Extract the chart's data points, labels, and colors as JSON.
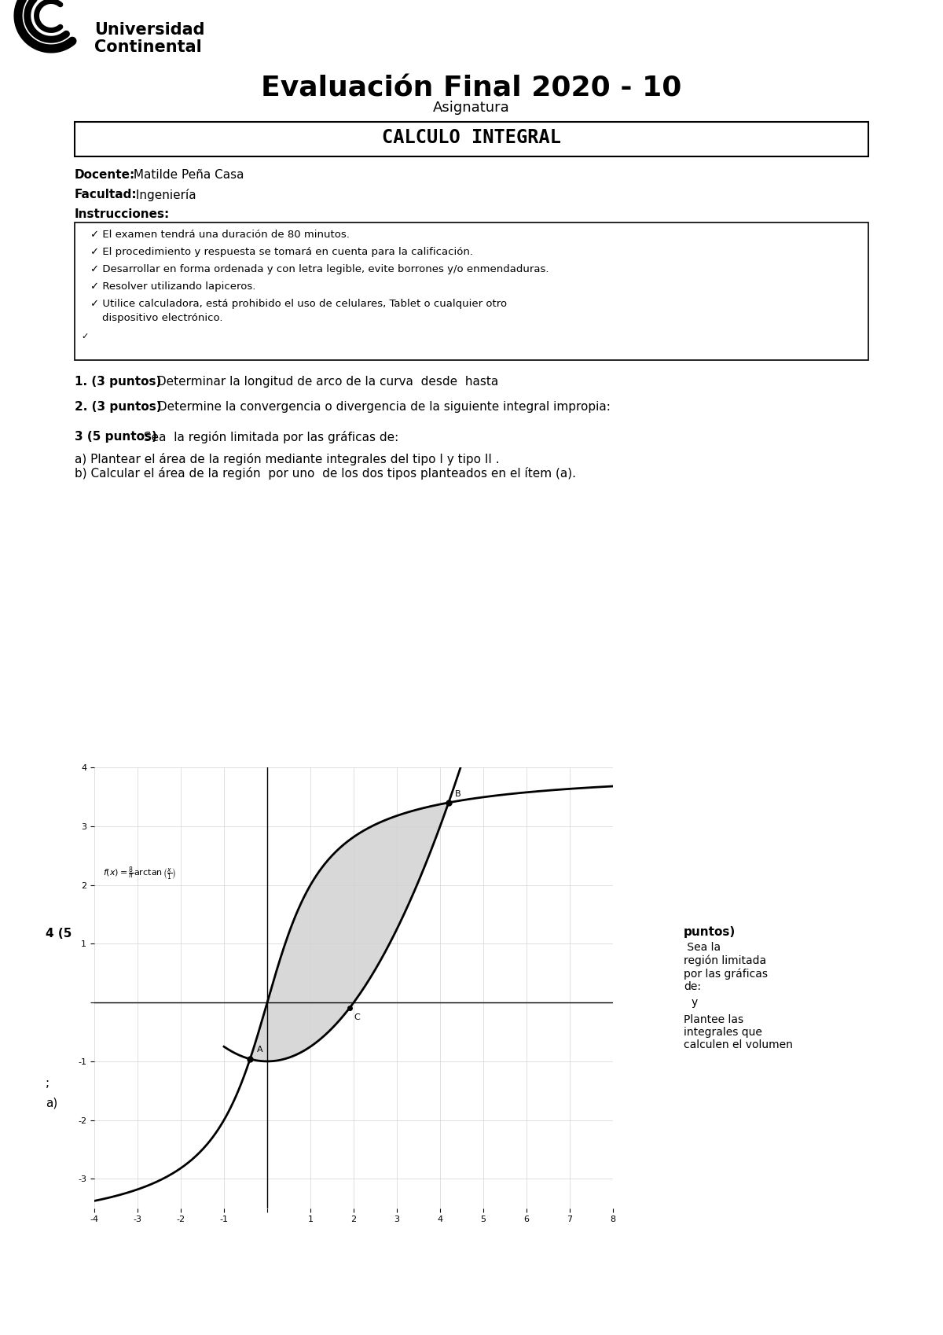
{
  "title_main": "Evaluación Final 2020 - 10",
  "subtitle_main": "Asignatura",
  "subject_box": "CALCULO INTEGRAL",
  "docente_label": "Docente:",
  "docente_value": " Matilde Peña Casa",
  "facultad_label": "Facultad:",
  "facultad_value": " Ingeniería",
  "instrucciones_label": "Instrucciones:",
  "instructions": [
    "El examen tendrá una duración de 80 minutos.",
    "El procedimiento y respuesta se tomará en cuenta para la calificación.",
    "Desarrollar en forma ordenada y con letra legible, evite borrones y/o enmendaduras.",
    "Resolver utilizando lapiceros.",
    "Utilice calculadora, está prohibido el uso de celulares, Tablet o cualquier otro\n    dispositivo electrónico."
  ],
  "q1_bold": "1. (3 puntos)",
  "q1_text": " Determinar la longitud de arco de la curva  desde  hasta",
  "q2_bold": "2. (3 puntos)",
  "q2_text": " Determine la convergencia o divergencia de la siguiente integral impropia:",
  "q3_bold": "3 (5 puntos)",
  "q3_text": " Sea  la región limitada por las gráficas de:",
  "q3a": "a) Plantear el área de la región mediante integrales del tipo I y tipo II .",
  "q3b": "b) Calcular el área de la región  por uno  de los dos tipos planteados en el ítem (a).",
  "q4_bold": "4 (5",
  "q4_side_bold": "puntos)",
  "q4_side_text": " Sea la\nregión limitada\npor las gráficas\nde:",
  "q4_side_y": "y",
  "q4_side_plantee": "Plantee las\nintegrales que\ncalculen el volumen",
  "q4_semi": ";",
  "q4_a": "a)",
  "background_color": "#ffffff",
  "text_color": "#000000",
  "graph_xlim": [
    -4,
    8
  ],
  "graph_ylim": [
    -3.5,
    4
  ],
  "graph_xticks": [
    -4,
    -3,
    -2,
    -1,
    0,
    1,
    2,
    3,
    4,
    5,
    6,
    7,
    8
  ],
  "graph_yticks": [
    -3,
    -2,
    -1,
    0,
    1,
    2,
    3,
    4
  ],
  "func_label": "f(x) = \\frac{8}{\\pi} \\arctan\\left(\\frac{x}{1}\\right)"
}
